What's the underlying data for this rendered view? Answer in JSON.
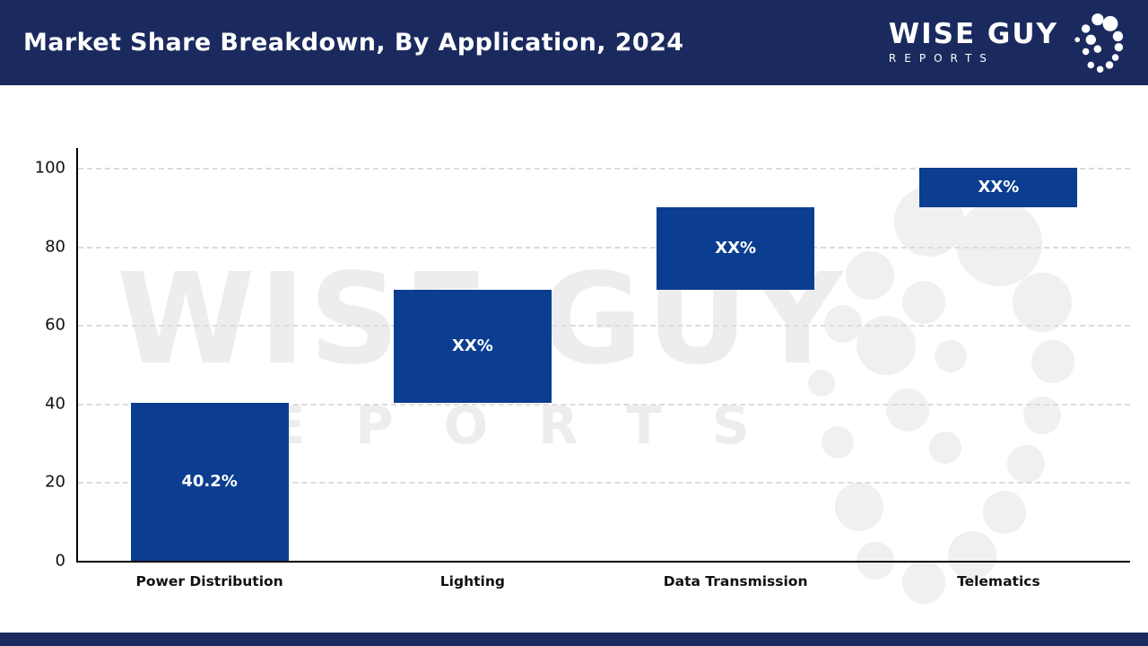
{
  "header": {
    "title": "Market Share Breakdown, By Application, 2024",
    "logo": {
      "line1": "WISE GUY",
      "line2": "REPORTS",
      "icon": "dotted-head-profile"
    }
  },
  "watermark": {
    "line1": "WISE GUY",
    "line2": "REPORTS",
    "icon": "dotted-head-profile"
  },
  "colors": {
    "header_navy": "#1b2a5e",
    "bar_blue": "#0b3d91",
    "watermark_gray": "#ededed",
    "gridline_gray": "#dcdcdc"
  },
  "chart_data": {
    "type": "bar",
    "variant": "waterfall",
    "title": "Market Share Breakdown, By Application, 2024",
    "categories": [
      "Power Distribution",
      "Lighting",
      "Data Transmission",
      "Telematics"
    ],
    "series": [
      {
        "name": "Market Share (%)",
        "segment_start": [
          0,
          40.2,
          69,
          90
        ],
        "segment_end": [
          40.2,
          69,
          90,
          100
        ],
        "values_estimated": [
          40.2,
          28.8,
          21,
          10
        ],
        "bar_labels": [
          "40.2%",
          "XX%",
          "XX%",
          "XX%"
        ]
      }
    ],
    "xlabel": "",
    "ylabel": "",
    "ylim": [
      0,
      100
    ],
    "yticks": [
      0,
      20,
      40,
      60,
      80,
      100
    ],
    "grid": true,
    "gridline_style": "dashed",
    "legend": "none",
    "bar_color": "#0b3d91",
    "bar_label_color": "#ffffff"
  }
}
